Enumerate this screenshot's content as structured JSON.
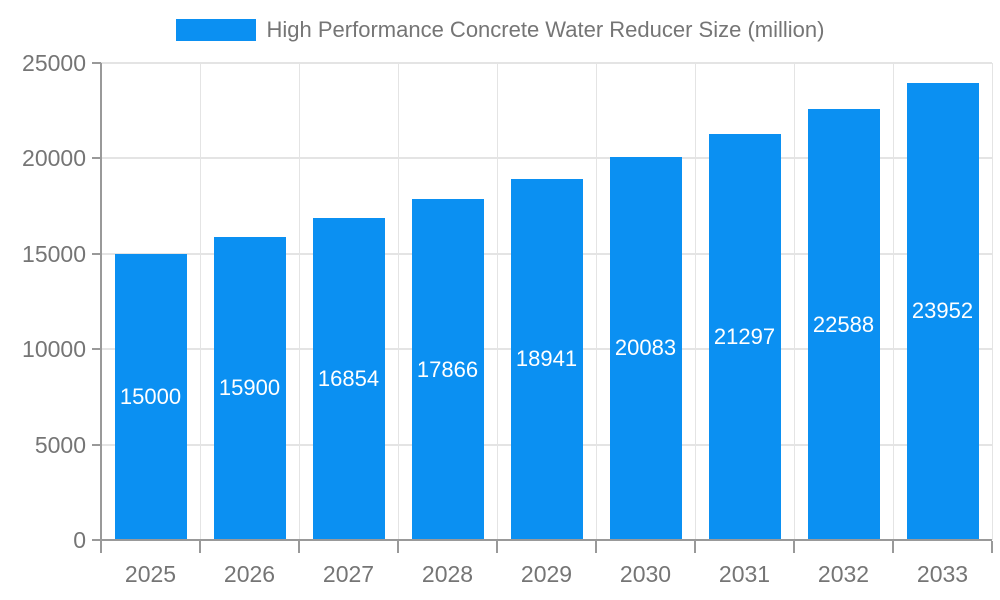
{
  "chart_data": {
    "type": "bar",
    "title": "High Performance Concrete Water Reducer Size (million)",
    "categories": [
      "2025",
      "2026",
      "2027",
      "2028",
      "2029",
      "2030",
      "2031",
      "2032",
      "2033"
    ],
    "values": [
      15000,
      15900,
      16854,
      17866,
      18941,
      20083,
      21297,
      22588,
      23952
    ],
    "series": [
      {
        "name": "High Performance Concrete Water Reducer Size (million)",
        "values": [
          15000,
          15900,
          16854,
          17866,
          18941,
          20083,
          21297,
          22588,
          23952
        ]
      }
    ],
    "xlabel": "",
    "ylabel": "",
    "ylim": [
      0,
      25000
    ],
    "yticks": [
      0,
      5000,
      10000,
      15000,
      20000,
      25000
    ],
    "grid": "on",
    "legend_position": "top-center",
    "bar_color": "#0b90f2",
    "bar_label_color": "#ffffff",
    "axis_text_color": "#757575",
    "axis_line_color": "#999999",
    "grid_color": "#e4e4e4"
  }
}
